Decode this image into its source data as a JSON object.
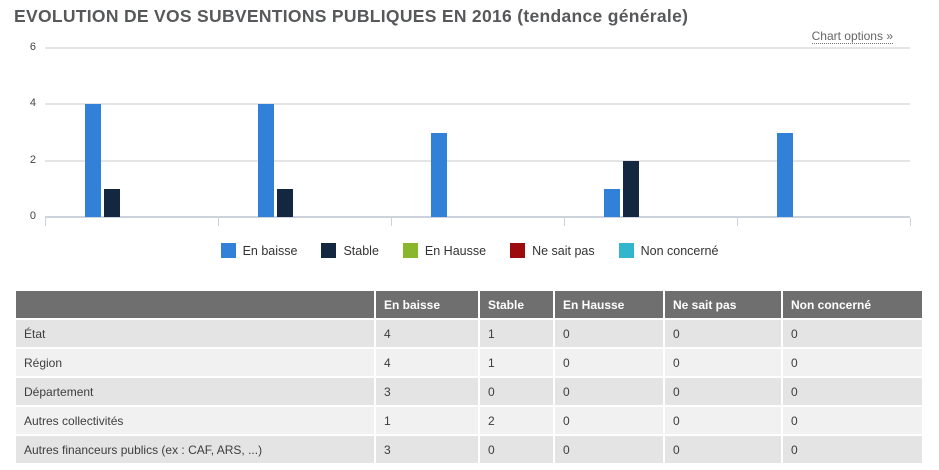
{
  "header": {
    "title": "EVOLUTION DE VOS SUBVENTIONS PUBLIQUES EN 2016 (tendance générale)",
    "chart_options_label": "Chart options »"
  },
  "chart_data": {
    "type": "bar",
    "title": "EVOLUTION DE VOS SUBVENTIONS PUBLIQUES EN 2016 (tendance générale)",
    "categories": [
      "État",
      "Région",
      "Département",
      "Autres collectivités",
      "Autres financeurs publics (ex : CAF, ARS, ...)"
    ],
    "series": [
      {
        "name": "En baisse",
        "color": "#3181d8",
        "values": [
          4,
          4,
          3,
          1,
          3
        ]
      },
      {
        "name": "Stable",
        "color": "#132740",
        "values": [
          1,
          1,
          0,
          2,
          0
        ]
      },
      {
        "name": "En Hausse",
        "color": "#8ab62c",
        "values": [
          0,
          0,
          0,
          0,
          0
        ]
      },
      {
        "name": "Ne sait pas",
        "color": "#9c0b0e",
        "values": [
          0,
          0,
          0,
          0,
          0
        ]
      },
      {
        "name": "Non concerné",
        "color": "#32b6ce",
        "values": [
          0,
          0,
          0,
          0,
          0
        ]
      }
    ],
    "ylim": [
      0,
      6
    ],
    "yticks": [
      0,
      2,
      4,
      6
    ],
    "grid": true,
    "legend_position": "bottom",
    "xlabel": "",
    "ylabel": ""
  },
  "table": {
    "headers": [
      "",
      "En baisse",
      "Stable",
      "En Hausse",
      "Ne sait pas",
      "Non concerné"
    ],
    "rows": [
      {
        "label": "État",
        "values": [
          "4",
          "1",
          "0",
          "0",
          "0"
        ]
      },
      {
        "label": "Région",
        "values": [
          "4",
          "1",
          "0",
          "0",
          "0"
        ]
      },
      {
        "label": "Département",
        "values": [
          "3",
          "0",
          "0",
          "0",
          "0"
        ]
      },
      {
        "label": "Autres collectivités",
        "values": [
          "1",
          "2",
          "0",
          "0",
          "0"
        ]
      },
      {
        "label": "Autres financeurs publics (ex : CAF, ARS, ...)",
        "values": [
          "3",
          "0",
          "0",
          "0",
          "0"
        ]
      }
    ]
  }
}
